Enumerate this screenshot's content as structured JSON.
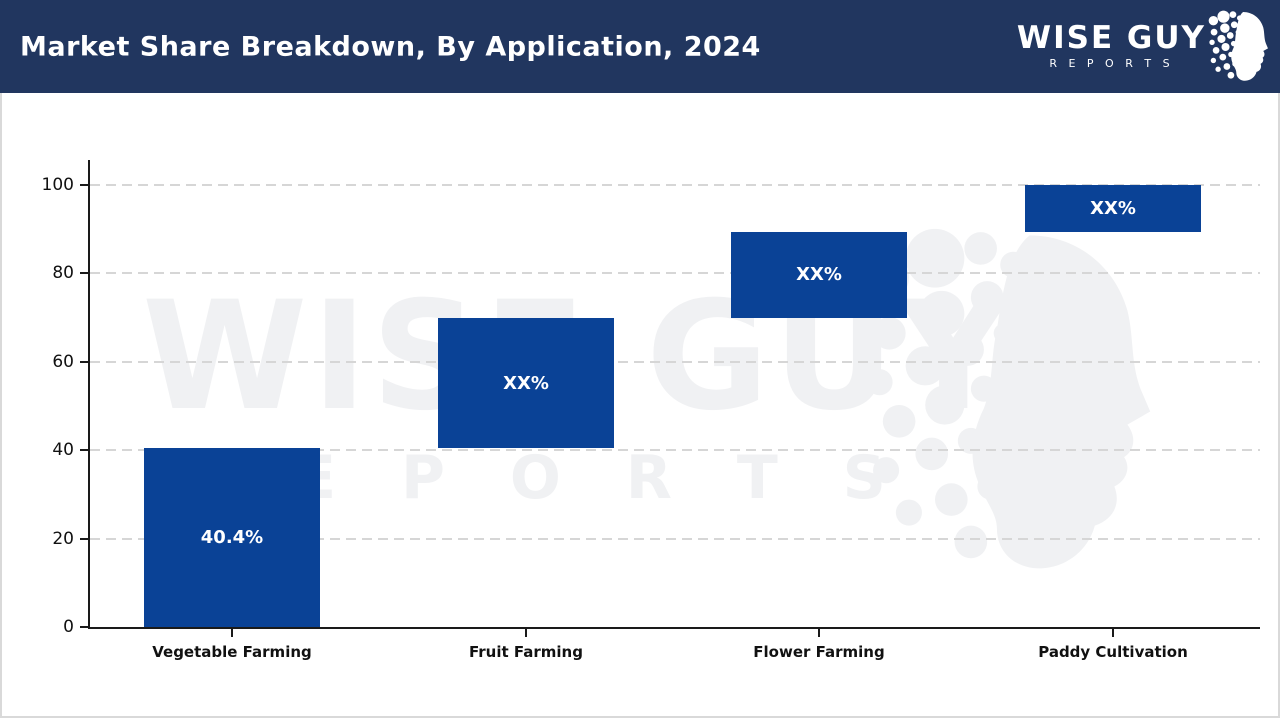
{
  "header": {
    "title": "Market Share Breakdown, By Application, 2024",
    "logo": {
      "line1": "WISE GUY",
      "line2": "R E P O R T S"
    }
  },
  "watermark": {
    "line1": "WISE GUY",
    "line2": "R E P O R T S"
  },
  "colors": {
    "header_bg": "#21365f",
    "bar": "#0a4296",
    "bar_label": "#ffffff",
    "grid": "#d6d6d6",
    "axis": "#1a1a1a",
    "watermark": "#f0f1f3",
    "panel_border": "#d9d9d9"
  },
  "chart_data": {
    "type": "bar",
    "subtype": "waterfall-stacked",
    "title": "Market Share Breakdown, By Application, 2024",
    "categories": [
      "Vegetable Farming",
      "Fruit Farming",
      "Flower Farming",
      "Paddy Cultivation"
    ],
    "series": [
      {
        "name": "Market Share (%)",
        "segments": [
          {
            "category": "Vegetable Farming",
            "start": 0,
            "end": 40.4,
            "label": "40.4%"
          },
          {
            "category": "Fruit Farming",
            "start": 40.4,
            "end": 70,
            "label": "XX%"
          },
          {
            "category": "Flower Farming",
            "start": 70,
            "end": 89.3,
            "label": "XX%"
          },
          {
            "category": "Paddy Cultivation",
            "start": 89.3,
            "end": 100,
            "label": "XX%"
          }
        ]
      }
    ],
    "xlabel": "",
    "ylabel": "",
    "ylim": [
      0,
      105
    ],
    "yticks": [
      0,
      20,
      40,
      60,
      80,
      100
    ],
    "grid": "horizontal-dashed",
    "legend": "none"
  }
}
